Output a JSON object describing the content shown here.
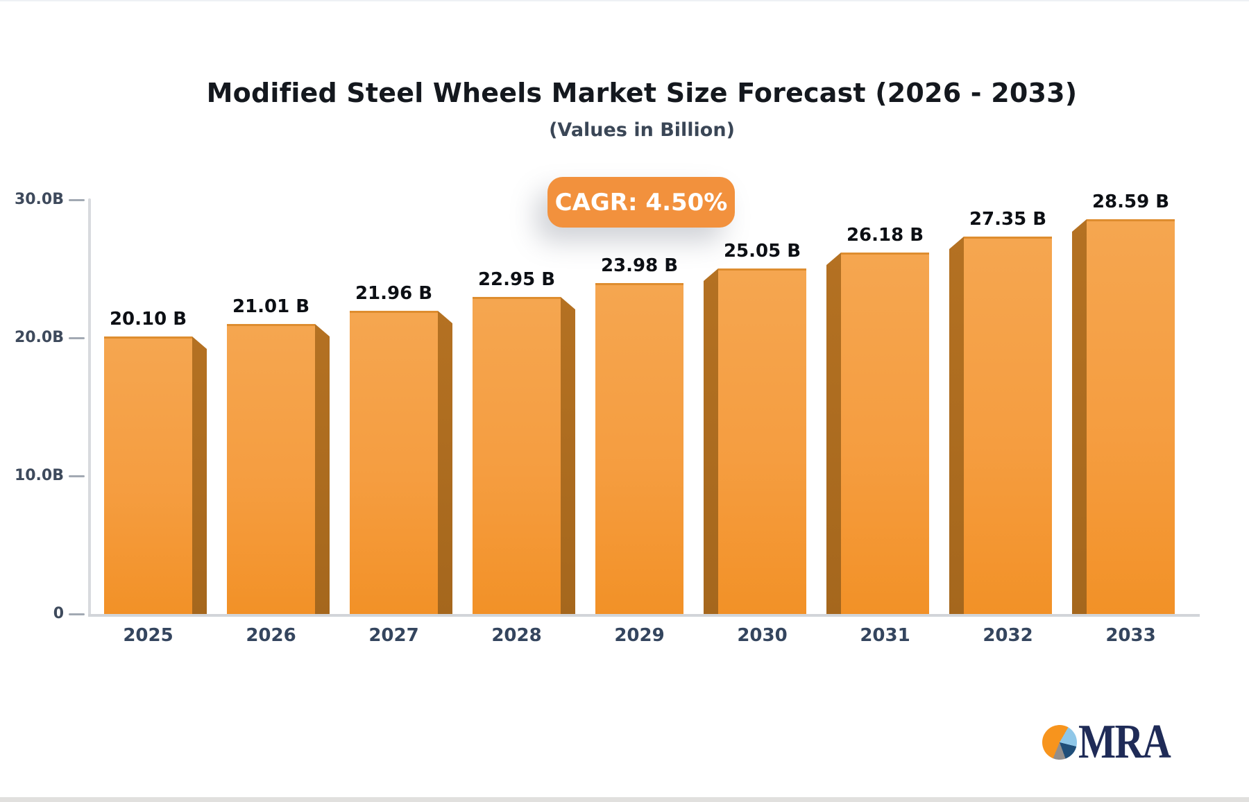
{
  "header": {
    "title": "Modified Steel Wheels Market Size Forecast (2026 - 2033)",
    "subtitle": "(Values in Billion)"
  },
  "badge": {
    "label": "CAGR: 4.50%",
    "background_color": "#f2913d",
    "text_color": "#ffffff"
  },
  "chart_data": {
    "type": "bar",
    "title": "Modified Steel Wheels Market Size Forecast (2026 - 2033)",
    "subtitle": "(Values in Billion)",
    "annotation": "CAGR: 4.50%",
    "categories": [
      "2025",
      "2026",
      "2027",
      "2028",
      "2029",
      "2030",
      "2031",
      "2032",
      "2033"
    ],
    "values": [
      20.1,
      21.01,
      21.96,
      22.95,
      23.98,
      25.05,
      26.18,
      27.35,
      28.59
    ],
    "value_labels": [
      "20.10 B",
      "21.01 B",
      "21.96 B",
      "22.95 B",
      "23.98 B",
      "25.05 B",
      "26.18 B",
      "27.35 B",
      "28.59 B"
    ],
    "xlabel": "",
    "ylabel": "",
    "ylim": [
      0,
      30
    ],
    "yticks": [
      {
        "value": 30,
        "label": "30.0B"
      },
      {
        "value": 20,
        "label": "20.0B"
      },
      {
        "value": 10,
        "label": "10.0B"
      },
      {
        "value": 0,
        "label": "0"
      }
    ],
    "grid": false,
    "legend_position": "none",
    "style": "3d-bevel",
    "bar_color": "#f59e42",
    "bar_side_color": "#ae6d20"
  },
  "logo": {
    "text": "MRA",
    "pie_colors": [
      "#f7941d",
      "#8fc7e8",
      "#1f4e79",
      "#928e8c"
    ]
  }
}
